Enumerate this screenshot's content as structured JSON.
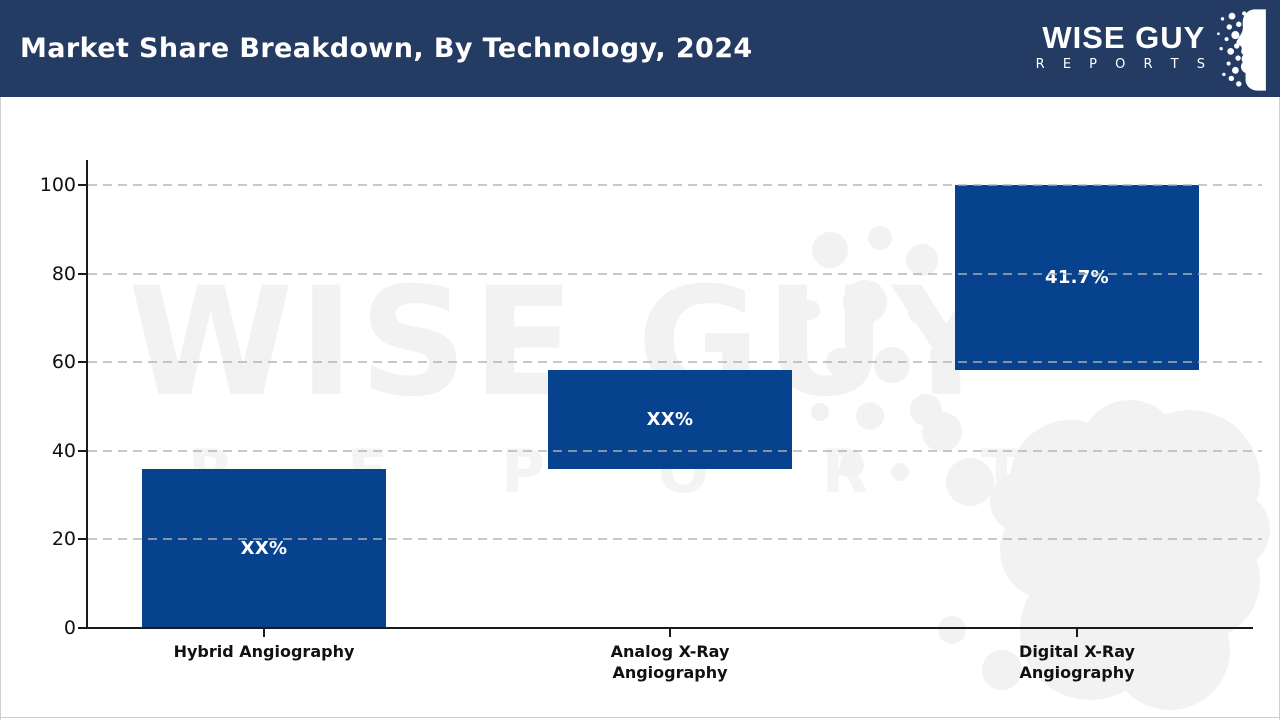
{
  "header": {
    "title": "Market Share Breakdown, By Technology, 2024",
    "logo_text": "WISE GUY",
    "logo_sub": "R E P O R T S"
  },
  "watermark": {
    "line1": "WISE GUY",
    "line2": "R E P O R T S"
  },
  "chart_data": {
    "type": "bar",
    "variant": "floating_segment_waterfall",
    "title": "Market Share Breakdown, By Technology, 2024",
    "categories": [
      "Hybrid Angiography",
      "Analog X-Ray Angiography",
      "Digital X-Ray Angiography"
    ],
    "category_label_lines": [
      [
        "Hybrid Angiography"
      ],
      [
        "Analog X-Ray",
        "Angiography"
      ],
      [
        "Digital X-Ray",
        "Angiography"
      ]
    ],
    "bars": [
      {
        "category": "Hybrid Angiography",
        "start": 0,
        "end": 36,
        "label": "XX%"
      },
      {
        "category": "Analog X-Ray Angiography",
        "start": 36,
        "end": 58.3,
        "label": "XX%"
      },
      {
        "category": "Digital X-Ray Angiography",
        "start": 58.3,
        "end": 100,
        "label": "41.7%"
      }
    ],
    "yticks": [
      0,
      20,
      40,
      60,
      80,
      100
    ],
    "ylim": [
      0,
      105.6
    ],
    "xlabel": "",
    "ylabel": "",
    "grid": "horizontal-dashed-over-bars",
    "legend": "none",
    "bar_color": "#07428f"
  },
  "colors": {
    "header_bg": "#243b64",
    "bar_blue": "#07428f",
    "grid_gray": "#b2b2b2",
    "axis_black": "#1a1a1a",
    "watermark_gray": "#f2f2f2",
    "title_text": "#ffffff"
  }
}
